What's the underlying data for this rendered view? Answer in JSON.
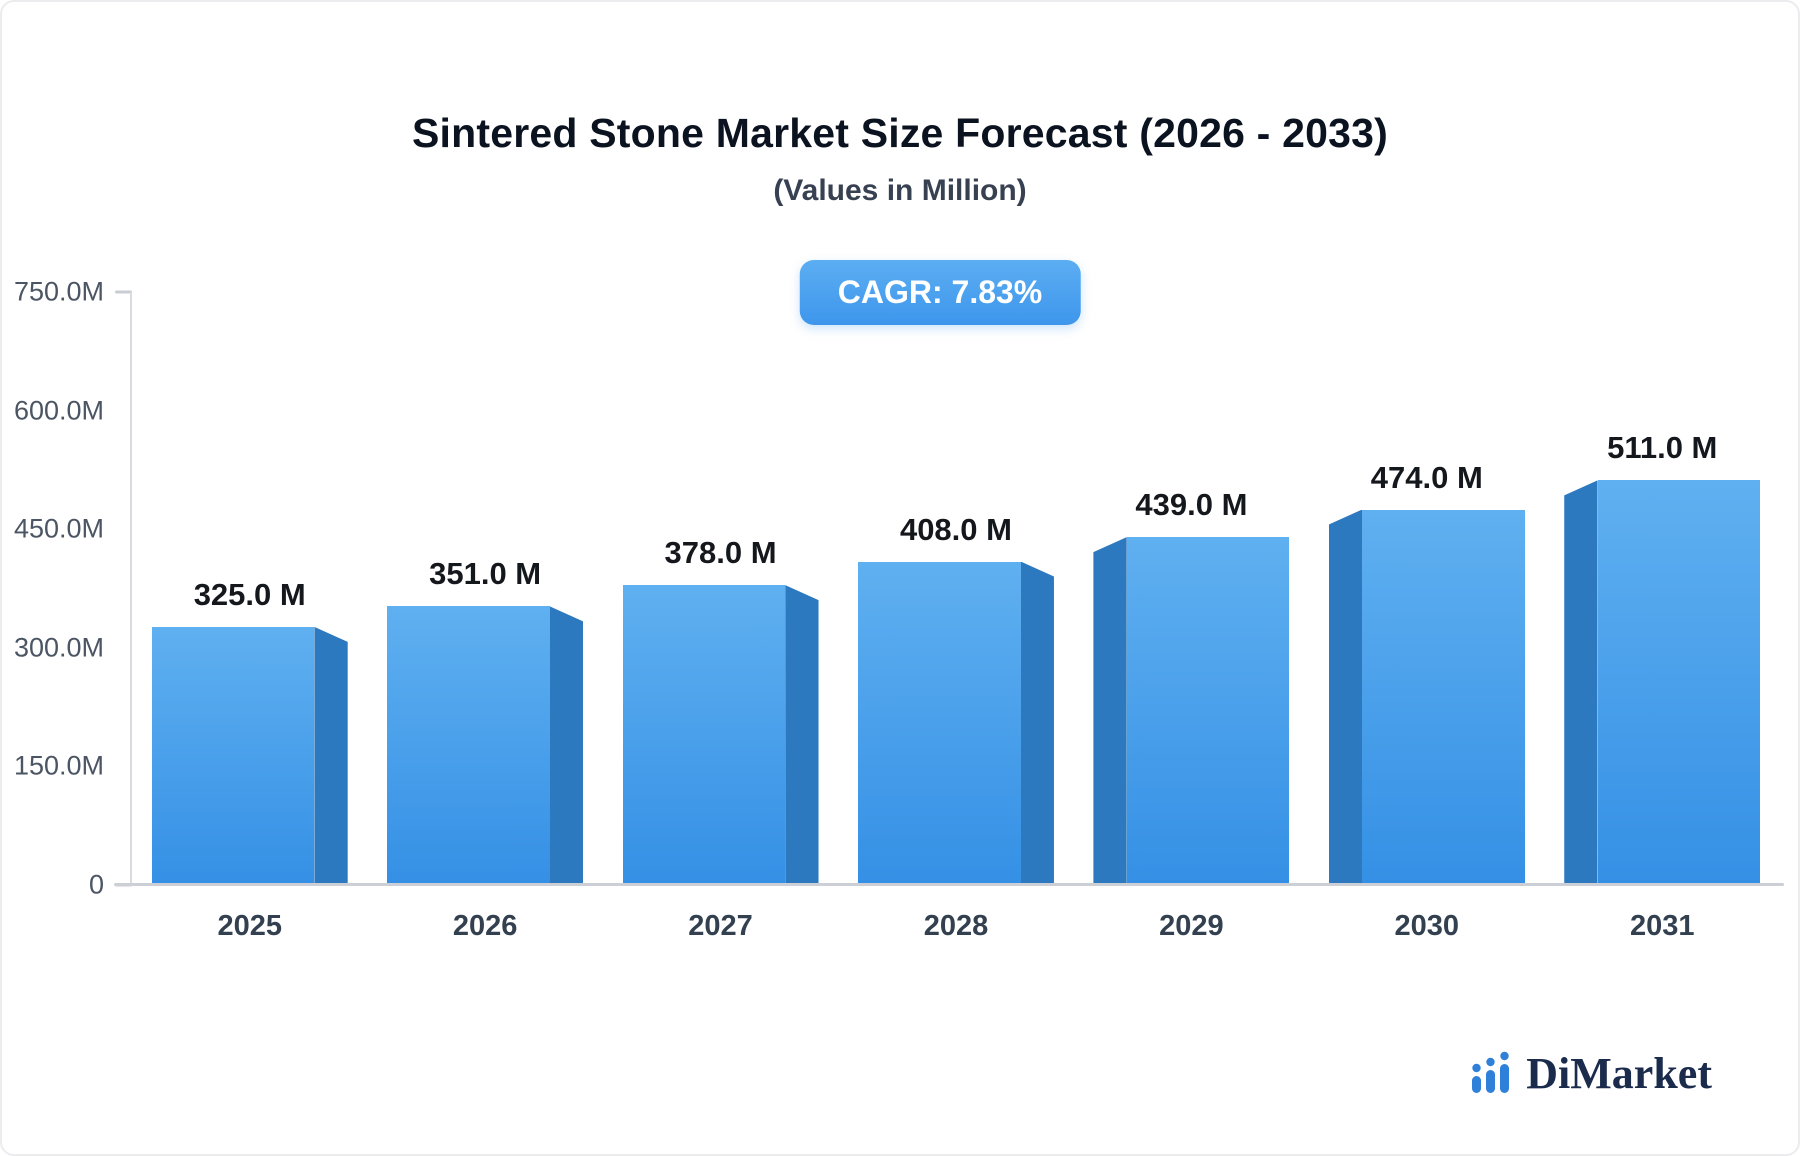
{
  "header": {
    "title": "Sintered Stone Market Size Forecast (2026 - 2033)",
    "subtitle": "(Values in Million)"
  },
  "badge": {
    "label": "CAGR: 7.83%"
  },
  "logo": {
    "text": "DiMarket",
    "icon": "bar-chart-icon"
  },
  "colors": {
    "accent": "#3e96ec",
    "accent_light": "#5caef2",
    "bar_top": "#5fb0f0",
    "bar_bottom": "#3590e5",
    "bar_side": "#2d79bf",
    "logo_blue": "#2f80d9",
    "logo_navy": "#1a2b4c"
  },
  "chart_data": {
    "type": "bar",
    "title": "Sintered Stone Market Size Forecast (2026 - 2033)",
    "subtitle": "(Values in Million)",
    "categories": [
      "2025",
      "2026",
      "2027",
      "2028",
      "2029",
      "2030",
      "2031"
    ],
    "values": [
      325.0,
      351.0,
      378.0,
      408.0,
      439.0,
      474.0,
      511.0
    ],
    "value_labels": [
      "325.0 M",
      "351.0 M",
      "378.0 M",
      "408.0 M",
      "439.0 M",
      "474.0 M",
      "511.0 M"
    ],
    "xlabel": "",
    "ylabel": "",
    "ylim": [
      0,
      750
    ],
    "yticks": [
      0,
      150,
      300,
      450,
      600,
      750
    ],
    "ytick_labels": [
      "0",
      "150.0M",
      "300.0M",
      "450.0M",
      "600.0M",
      "750.0M"
    ],
    "grid": false,
    "legend": false,
    "annotation": "CAGR: 7.83%"
  }
}
